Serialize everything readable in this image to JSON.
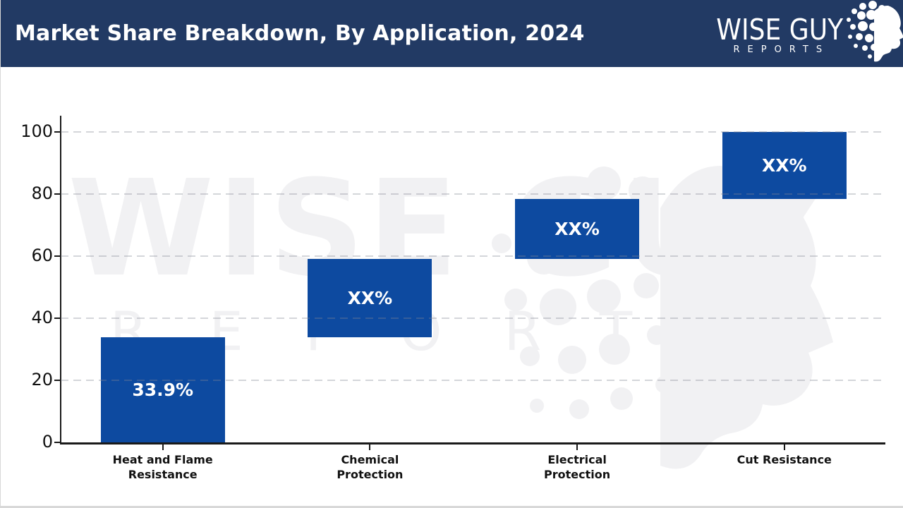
{
  "header": {
    "title": "Market Share Breakdown, By Application, 2024",
    "logo": {
      "line1": "WISE GUY",
      "line2": "REPORTS"
    }
  },
  "watermark": {
    "line1": "WISE GUY",
    "line2": "REPORTS"
  },
  "chart_data": {
    "type": "bar",
    "subtype": "waterfall-stacked-percent",
    "title": "Market Share Breakdown, By Application, 2024",
    "categories": [
      "Heat and Flame\nResistance",
      "Chemical\nProtection",
      "Electrical\nProtection",
      "Cut Resistance"
    ],
    "segments": [
      {
        "category": "Heat and Flame Resistance",
        "start": 0,
        "end": 33.9,
        "label": "33.9%"
      },
      {
        "category": "Chemical Protection",
        "start": 33.9,
        "end": 59.0,
        "label": "XX%"
      },
      {
        "category": "Electrical Protection",
        "start": 59.0,
        "end": 78.4,
        "label": "XX%"
      },
      {
        "category": "Cut Resistance",
        "start": 78.4,
        "end": 100,
        "label": "XX%"
      }
    ],
    "yticks": [
      0,
      20,
      40,
      60,
      80,
      100
    ],
    "ylim": [
      0,
      100
    ],
    "grid": "horizontal dashed",
    "legend": "none",
    "bar_color": "#0d4aa0",
    "bar_label_color": "#ffffff"
  },
  "colors": {
    "header_bg": "#223a64",
    "bar": "#0d4aa0",
    "gridline": "#d9d9d9",
    "axis": "#1a1a1a",
    "watermark": "#f1f1f3",
    "frame_border": "#d8d8d8"
  }
}
